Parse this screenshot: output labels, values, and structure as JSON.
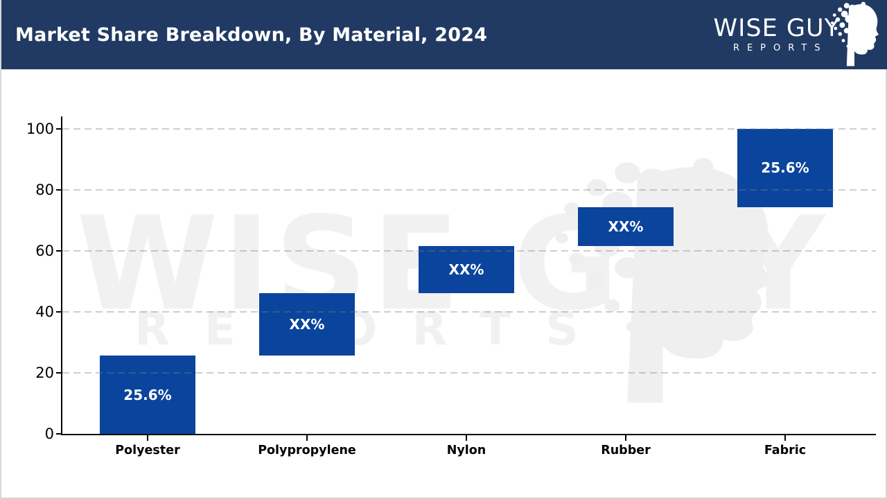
{
  "header": {
    "title": "Market Share Breakdown, By Material, 2024",
    "logo": {
      "line1": "WISE GUY",
      "line2": "REPORTS"
    }
  },
  "watermark": {
    "line1": "WISE GUY",
    "line2": "REPORTS"
  },
  "chart_data": {
    "type": "bar",
    "subtype": "waterfall-floating-segments",
    "title": "Market Share Breakdown, By Material, 2024",
    "xlabel": "",
    "ylabel": "",
    "categories": [
      "Polyester",
      "Polypropylene",
      "Nylon",
      "Rubber",
      "Fabric"
    ],
    "segments": [
      {
        "category": "Polyester",
        "start": 0,
        "end": 25.6,
        "value": 25.6,
        "label": "25.6%"
      },
      {
        "category": "Polypropylene",
        "start": 25.6,
        "end": 46.2,
        "value": 20.6,
        "label": "XX%"
      },
      {
        "category": "Nylon",
        "start": 46.2,
        "end": 61.7,
        "value": 15.5,
        "label": "XX%"
      },
      {
        "category": "Rubber",
        "start": 61.7,
        "end": 74.4,
        "value": 12.7,
        "label": "XX%"
      },
      {
        "category": "Fabric",
        "start": 74.4,
        "end": 100,
        "value": 25.6,
        "label": "25.6%"
      }
    ],
    "yticks": [
      0,
      20,
      40,
      60,
      80,
      100
    ],
    "ylim": [
      0,
      100
    ],
    "grid": "horizontal-dashed",
    "legend": "none",
    "bar_color": "#0a449c",
    "bar_label_color": "#ffffff"
  },
  "colors": {
    "header_bg": "#213a63",
    "bar": "#0a449c",
    "axis": "#000000",
    "grid": "#d7d7d7",
    "watermark": "#f1f1f1",
    "page_bg": "#ffffff"
  }
}
